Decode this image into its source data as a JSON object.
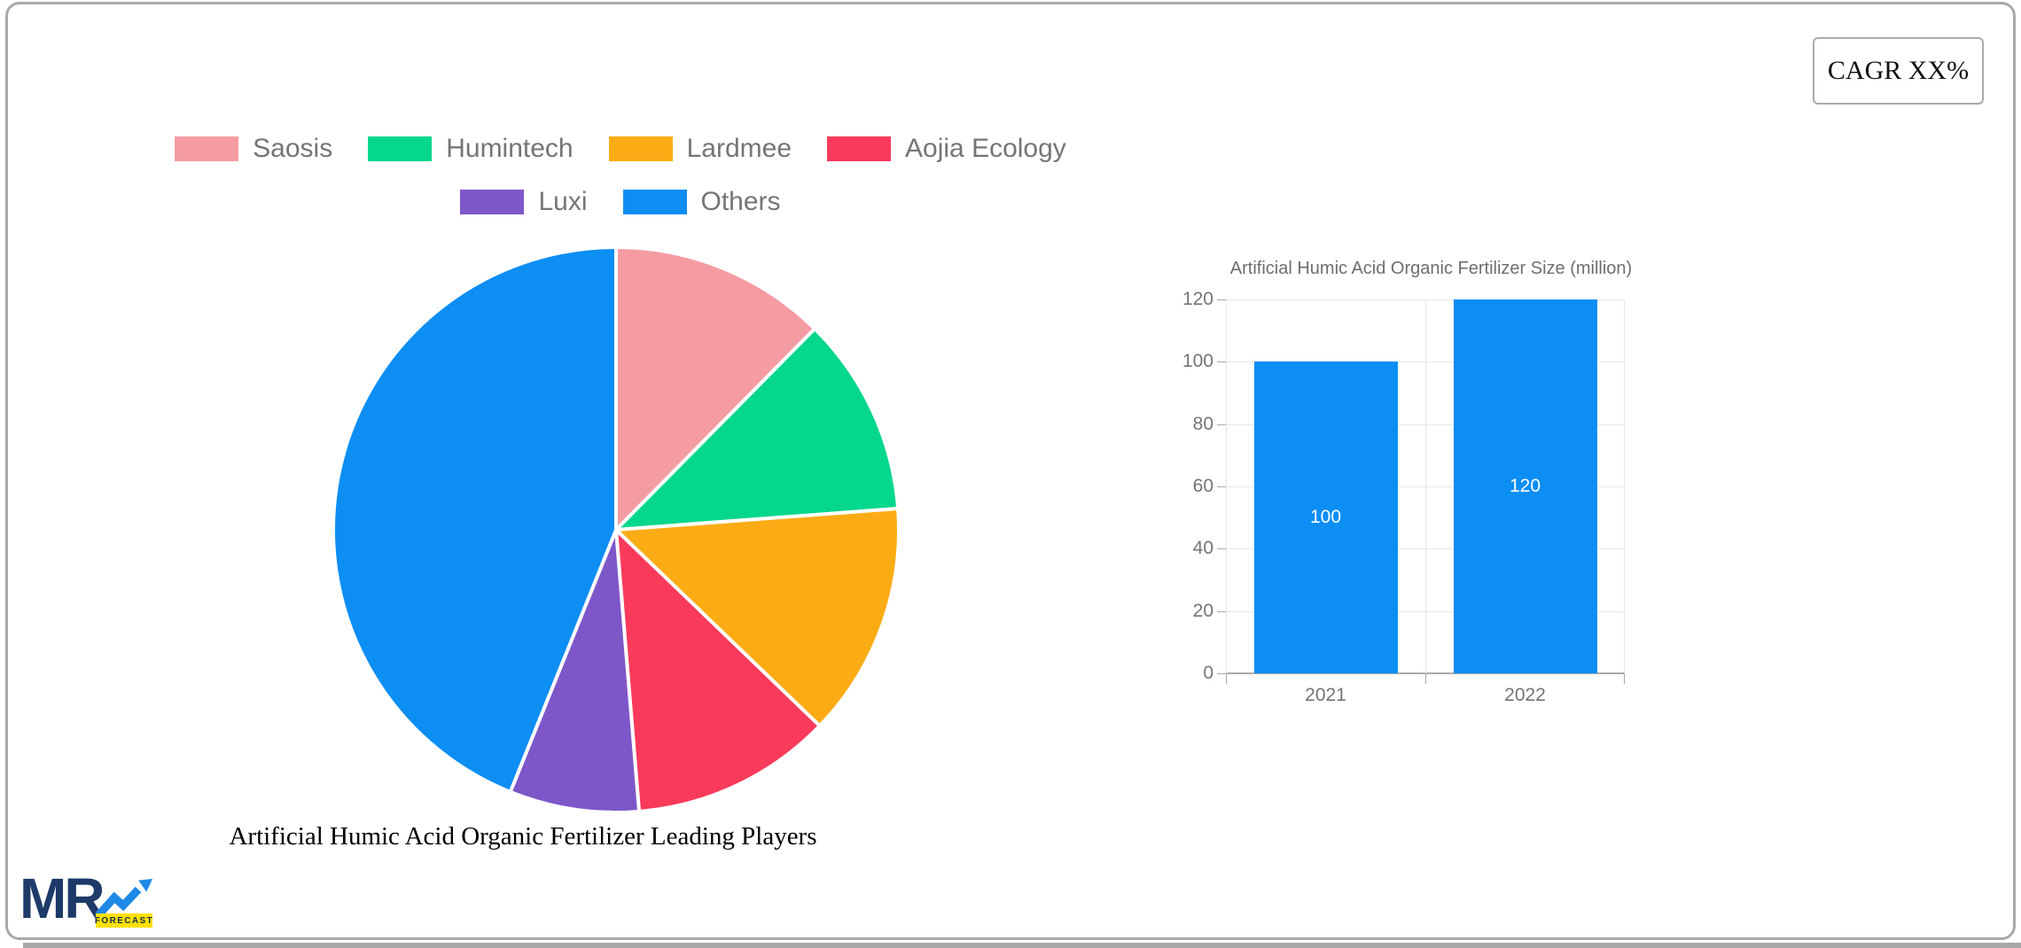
{
  "header": {
    "cagr_label": "CAGR XX%"
  },
  "logo": {
    "brand": "MR",
    "badge": "FORECAST"
  },
  "chart_data": [
    {
      "type": "pie",
      "title": "Artificial Humic Acid Organic Fertilizer Leading Players",
      "labels": [
        "Saosis",
        "Humintech",
        "Lardmee",
        "Aojia Ecology",
        "Luxi",
        "Others"
      ],
      "values_percent": [
        12.4,
        11.4,
        13.4,
        11.5,
        7.4,
        43.9
      ],
      "colors": [
        "#F59CA3",
        "#05D78C",
        "#FBAC15",
        "#F93A5B",
        "#7D57C8",
        "#0C8EF3"
      ],
      "start_angle_deg": 0,
      "direction": "clockwise",
      "legend_position": "top",
      "legend_rows": [
        [
          "Saosis",
          "Humintech",
          "Lardmee",
          "Aojia Ecology"
        ],
        [
          "Luxi",
          "Others"
        ]
      ]
    },
    {
      "type": "bar",
      "legend_label": "Artificial Humic Acid Organic Fertilizer Size (million)",
      "categories": [
        "2021",
        "2022"
      ],
      "values": [
        100,
        120
      ],
      "value_labels": [
        "100",
        "120"
      ],
      "bar_color": "#0C8EF3",
      "ylim": [
        0,
        120
      ],
      "y_ticks": [
        0,
        20,
        40,
        60,
        80,
        100,
        120
      ],
      "grid": true,
      "legend_position": "top",
      "value_label_position": "center-inside",
      "value_label_color": "#ffffff"
    }
  ]
}
